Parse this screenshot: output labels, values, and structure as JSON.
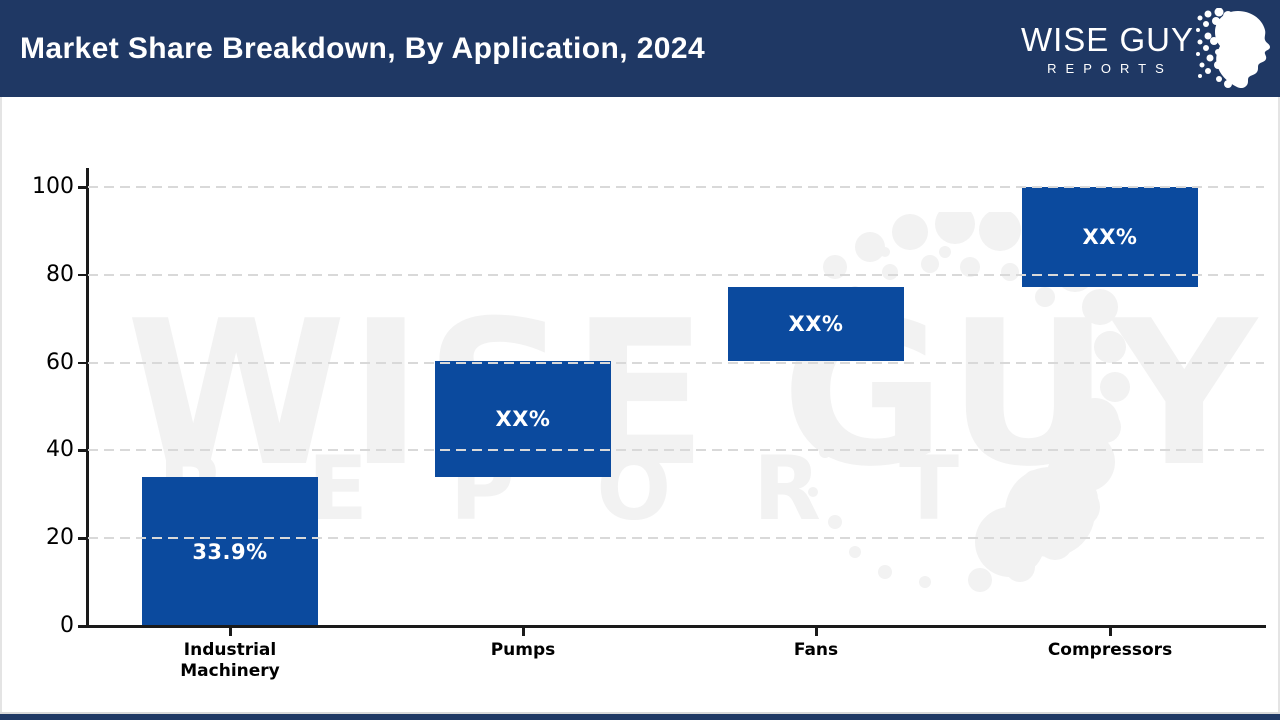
{
  "header": {
    "title": "Market Share Breakdown, By Application, 2024",
    "logo": {
      "wordmark": "WISE GUY",
      "subtitle": "REPORTS"
    }
  },
  "watermark": {
    "wordmark": "WISE GUY",
    "subtitle": "REPORTS"
  },
  "chart_data": {
    "type": "bar",
    "variant": "waterfall",
    "title": "Market Share Breakdown, By Application, 2024",
    "categories": [
      "Industrial Machinery",
      "Pumps",
      "Fans",
      "Compressors"
    ],
    "segments": [
      {
        "category": "Industrial Machinery",
        "start": 0,
        "end": 33.9,
        "label": "33.9%"
      },
      {
        "category": "Pumps",
        "start": 33.9,
        "end": 60.4,
        "label": "XX%"
      },
      {
        "category": "Fans",
        "start": 60.4,
        "end": 77.3,
        "label": "XX%"
      },
      {
        "category": "Compressors",
        "start": 77.3,
        "end": 100,
        "label": "XX%"
      }
    ],
    "displayed_values": [
      "33.9%",
      "XX%",
      "XX%",
      "XX%"
    ],
    "yticks": [
      0,
      20,
      40,
      60,
      80,
      100
    ],
    "y_max": 100,
    "ylim": [
      0,
      104
    ],
    "xlabel": "",
    "ylabel": "",
    "grid": "horizontal-dashed",
    "legend": "none",
    "bar_color": "#0b4a9e",
    "bar_label_color": "#ffffff"
  },
  "colors": {
    "header_bg": "#1f3864",
    "bar": "#0b4a9e",
    "watermark": "#f2f2f2",
    "gridline": "#d9d9d9",
    "axis": "#1a1a1a",
    "footer_bar": "#1f3864"
  }
}
